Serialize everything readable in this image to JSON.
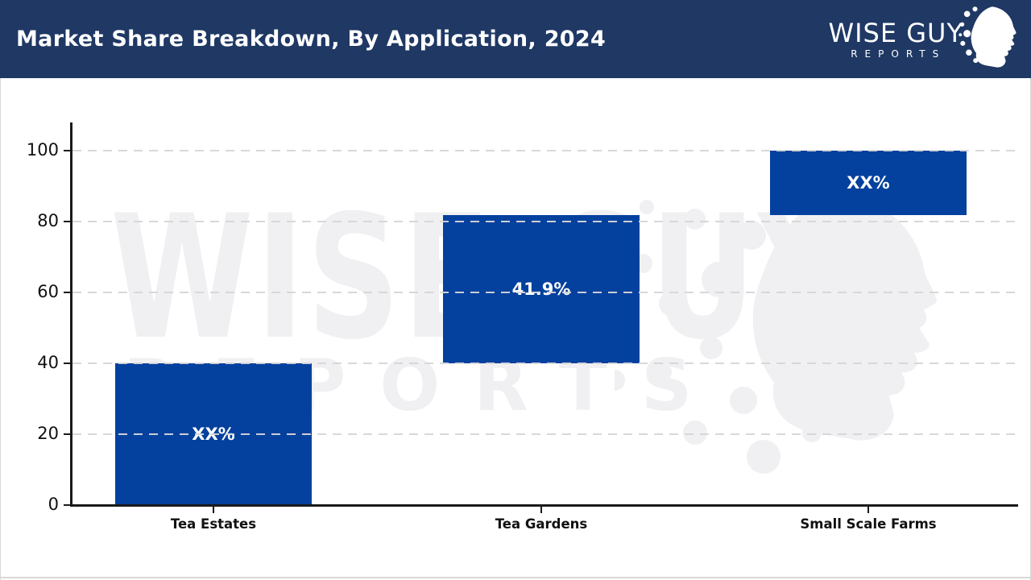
{
  "header": {
    "title": "Market Share Breakdown, By Application, 2024",
    "logo": {
      "name": "WISE GUY",
      "sub": "REPORTS"
    }
  },
  "watermark": {
    "line1": "WISE GUY",
    "line2": "REPORTS"
  },
  "chart_data": {
    "type": "bar",
    "subtype": "floating-stacked-segments",
    "title": "Market Share Breakdown, By Application, 2024",
    "categories": [
      "Tea Estates",
      "Tea Gardens",
      "Small Scale Farms"
    ],
    "bars": [
      {
        "category": "Tea Estates",
        "start": 0,
        "end": 40,
        "label": "XX%"
      },
      {
        "category": "Tea Gardens",
        "start": 40,
        "end": 81.9,
        "label": "41.9%"
      },
      {
        "category": "Small Scale Farms",
        "start": 81.9,
        "end": 100,
        "label": "XX%"
      }
    ],
    "ylim": [
      0,
      100
    ],
    "yticks": [
      0,
      20,
      40,
      60,
      80,
      100
    ],
    "grid": true,
    "legend": false,
    "xlabel": "",
    "ylabel": "",
    "bar_color": "#04419e",
    "bar_label_color": "#ffffff",
    "colors": {
      "header_bg": "#1f3864",
      "axis": "#1a1a1a",
      "gridline": "#d9d9d9",
      "watermark": "#f0f0f2"
    }
  }
}
